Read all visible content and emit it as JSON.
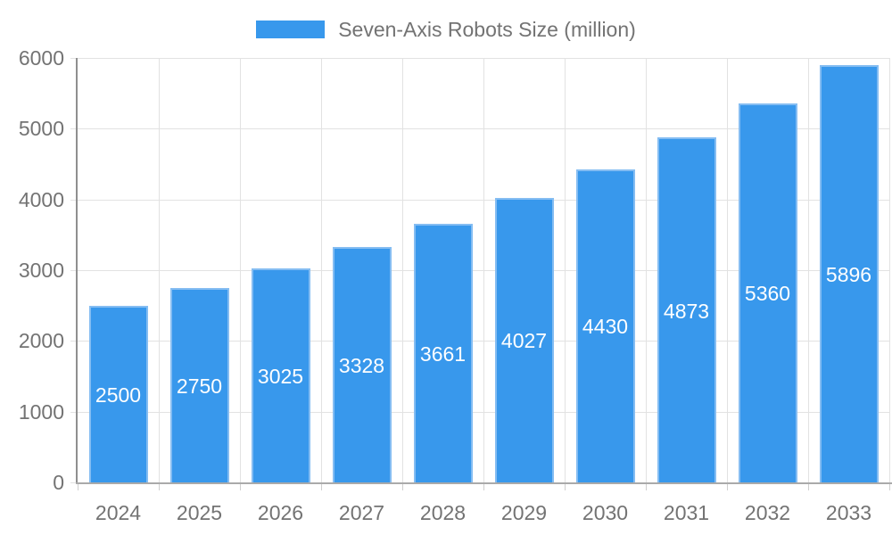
{
  "legend": {
    "label": "Seven-Axis Robots Size (million)"
  },
  "chart_data": {
    "type": "bar",
    "title": "Seven-Axis Robots Size (million)",
    "categories": [
      "2024",
      "2025",
      "2026",
      "2027",
      "2028",
      "2029",
      "2030",
      "2031",
      "2032",
      "2033"
    ],
    "series": [
      {
        "name": "Seven-Axis Robots Size (million)",
        "values": [
          2500,
          2750,
          3025,
          3328,
          3661,
          4027,
          4430,
          4873,
          5360,
          5896
        ]
      }
    ],
    "value_labels": [
      "2500",
      "2750",
      "3025",
      "3328",
      "3661",
      "4027",
      "4430",
      "4873",
      "5360",
      "5896"
    ],
    "xlabel": "",
    "ylabel": "",
    "ylim": [
      0,
      6000
    ],
    "yticks": [
      0,
      1000,
      2000,
      3000,
      4000,
      5000,
      6000
    ],
    "grid": true,
    "legend_position": "top-center",
    "value_label_position": "inside-center",
    "colors": {
      "bar_fill": "#3898ec",
      "bar_border": "#85bdf2",
      "value_label": "#ffffff",
      "axis_label": "#737373",
      "gridline": "#e2e2e2",
      "y_axis_line": "#8f8f8f",
      "x_axis_line": "#aaaaaa",
      "x_tick": "#cfcfcf",
      "y_tick": "#e2e2e2"
    }
  }
}
